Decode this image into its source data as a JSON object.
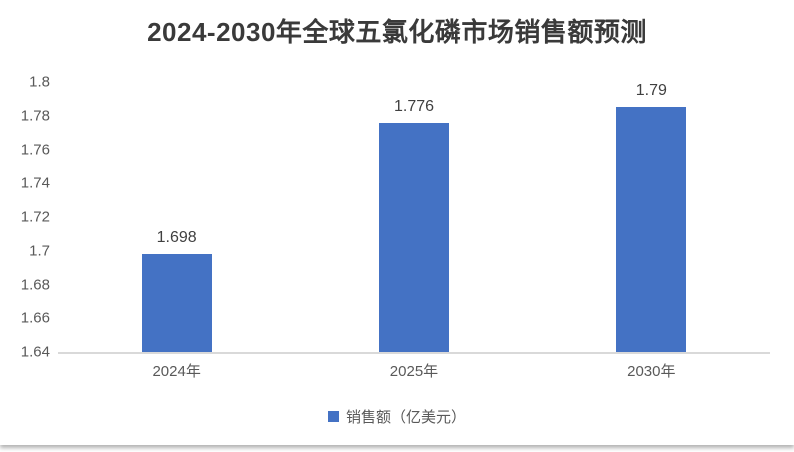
{
  "title": "2024-2030年全球五氯化磷市场销售额预测",
  "legend": {
    "label": "销售额（亿美元）"
  },
  "colors": {
    "bar": "#4472C4",
    "title_text": "#3A3A3A",
    "axis_text": "#595959",
    "data_label_text": "#404040",
    "axis_line": "#D9D9D9"
  },
  "chart_data": {
    "type": "bar",
    "title": "2024-2030年全球五氯化磷市场销售额预测",
    "categories": [
      "2024年",
      "2025年",
      "2030年"
    ],
    "values": [
      1.698,
      1.776,
      1.79
    ],
    "data_labels": [
      "1.698",
      "1.776",
      "1.79"
    ],
    "series_name": "销售额（亿美元）",
    "xlabel": "",
    "ylabel": "",
    "ylim": [
      1.64,
      1.8
    ],
    "ytick_step": 0.02,
    "yticks": [
      1.8,
      1.78,
      1.76,
      1.74,
      1.72,
      1.7,
      1.68,
      1.66,
      1.64
    ],
    "grid": false,
    "legend_position": "bottom"
  }
}
